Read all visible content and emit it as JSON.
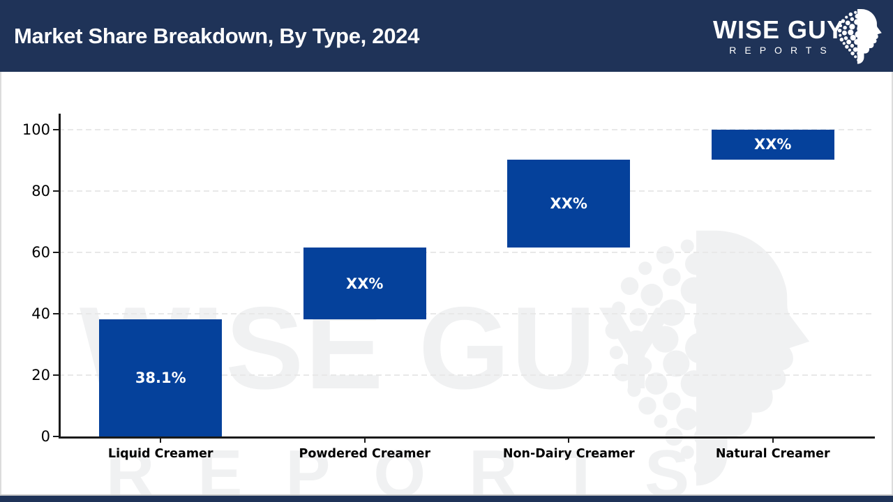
{
  "header": {
    "title": "Market Share Breakdown, By Type, 2024",
    "logo": {
      "line1": "WISE GUY",
      "line2": "REPORTS"
    }
  },
  "watermark": {
    "line1": "WISE GUY",
    "line2": "REPORTS"
  },
  "colors": {
    "header_navy": "#1f3358",
    "bar_blue": "#05419b",
    "gridline": "#e8e8e8",
    "watermark_gray": "#f0f1f2"
  },
  "chart_data": {
    "type": "bar",
    "variant": "waterfall",
    "title": "Market Share Breakdown, By Type, 2024",
    "categories": [
      "Liquid Creamer",
      "Powdered Creamer",
      "Non-Dairy Creamer",
      "Natural Creamer"
    ],
    "segments": [
      {
        "category": "Liquid Creamer",
        "start": 0,
        "end": 38.1,
        "label": "38.1%"
      },
      {
        "category": "Powdered Creamer",
        "start": 38.1,
        "end": 61.6,
        "label": "XX%"
      },
      {
        "category": "Non-Dairy Creamer",
        "start": 61.6,
        "end": 90.3,
        "label": "XX%"
      },
      {
        "category": "Natural Creamer",
        "start": 90.3,
        "end": 100,
        "label": "XX%"
      }
    ],
    "ylim": [
      0,
      100
    ],
    "yticks": [
      0,
      20,
      40,
      60,
      80,
      100
    ],
    "xlabel": "",
    "ylabel": "",
    "grid": "horizontal-dashed",
    "legend": "none",
    "bar_color": "#05419b",
    "bar_label_color": "#ffffff"
  }
}
